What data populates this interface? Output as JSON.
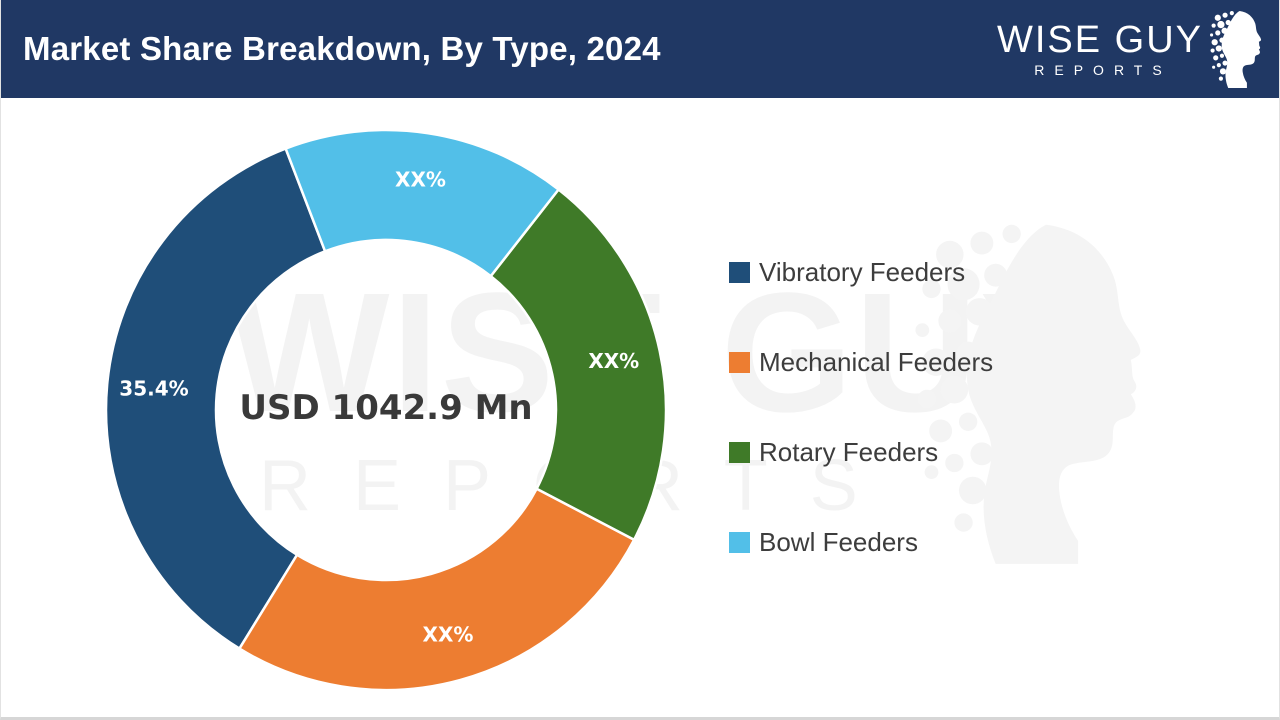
{
  "header": {
    "title": "Market Share Breakdown, By Type, 2024",
    "bg_color": "#203864",
    "logo": {
      "line1": "WISE GUY",
      "line2": "REPORTS"
    }
  },
  "watermark": {
    "line1": "WISE GUY",
    "line2": "REPORTS"
  },
  "chart_data": {
    "type": "pie",
    "subtype": "donut",
    "title": "Market Share Breakdown, By Type, 2024",
    "center_label": "USD 1042.9 Mn",
    "legend_position": "right",
    "start_angle_deg": -21,
    "direction": "counterclockwise",
    "inner_radius_ratio": 0.607,
    "categories": [
      "Vibratory Feeders",
      "Mechanical Feeders",
      "Rotary Feeders",
      "Bowl Feeders"
    ],
    "values": [
      35.4,
      26.1,
      22.1,
      16.4
    ],
    "segments": [
      {
        "name": "Vibratory Feeders",
        "value_pct": 35.4,
        "label": "35.4%",
        "color": "#1F4E79"
      },
      {
        "name": "Mechanical Feeders",
        "value_pct": 26.1,
        "label": "XX%",
        "color": "#ED7D31"
      },
      {
        "name": "Rotary Feeders",
        "value_pct": 22.1,
        "label": "XX%",
        "color": "#3F7A28"
      },
      {
        "name": "Bowl Feeders",
        "value_pct": 16.4,
        "label": "XX%",
        "color": "#52BFE8"
      }
    ]
  }
}
